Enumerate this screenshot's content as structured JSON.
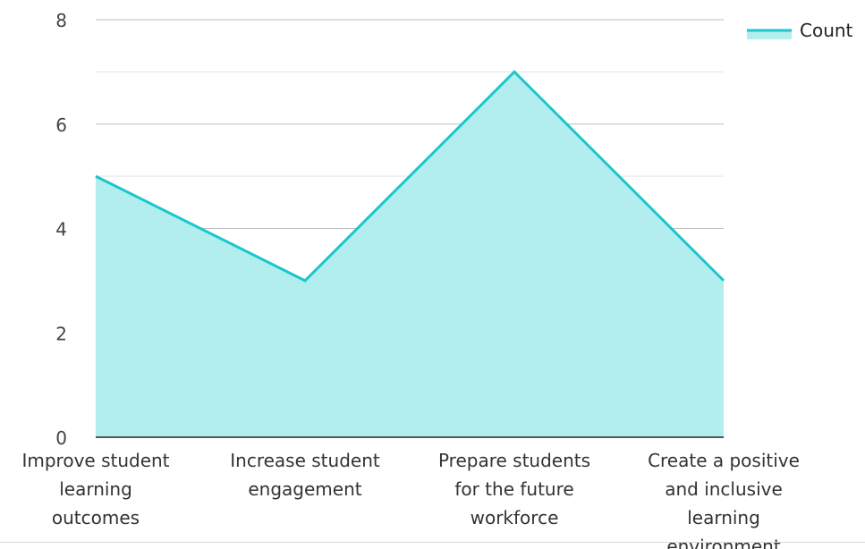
{
  "chart_data": {
    "type": "area",
    "categories": [
      "Improve student learning outcomes",
      "Increase student engagement",
      "Prepare students for the future workforce",
      "Create a positive and inclusive learning environment"
    ],
    "category_lines": [
      [
        "Improve student",
        "learning",
        "outcomes"
      ],
      [
        "Increase student",
        "engagement"
      ],
      [
        "Prepare students",
        "for the future",
        "workforce"
      ],
      [
        "Create a positive",
        "and inclusive",
        "learning",
        "environment"
      ]
    ],
    "series": [
      {
        "name": "Count",
        "values": [
          5,
          3,
          7,
          3
        ]
      }
    ],
    "ylim": [
      0,
      8
    ],
    "yticks": [
      0,
      2,
      4,
      6,
      8
    ],
    "minor_grid_step": 1,
    "grid": true,
    "legend": "top-right",
    "colors": {
      "line": "#1cc6cc",
      "fill": "#b2eeed",
      "grid_major": "#bdbdbd",
      "grid_minor": "#e3e3e3",
      "axis": "#222222"
    }
  }
}
